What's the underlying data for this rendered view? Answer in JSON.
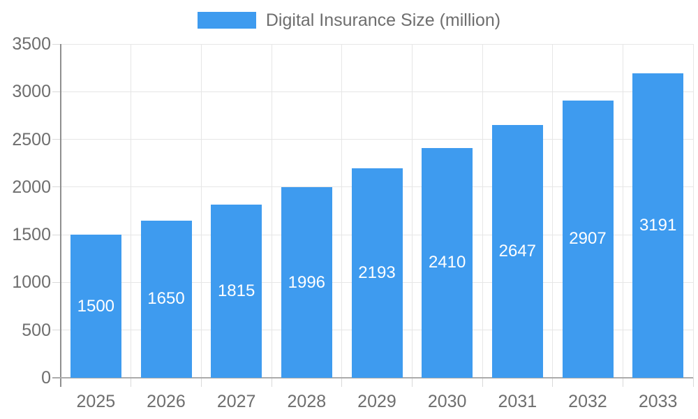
{
  "chart_data": {
    "type": "bar",
    "title": "Digital Insurance Size (million)",
    "categories": [
      "2025",
      "2026",
      "2027",
      "2028",
      "2029",
      "2030",
      "2031",
      "2032",
      "2033"
    ],
    "values": [
      1500,
      1650,
      1815,
      1996,
      2193,
      2410,
      2647,
      2907,
      3191
    ],
    "xlabel": "",
    "ylabel": "",
    "ylim": [
      0,
      3500
    ],
    "ytick_step": 500,
    "grid": true,
    "legend_position": "top-center",
    "value_labels": "inside-center",
    "bar_color": "#3E9BEF",
    "value_label_color": "#FFFFFF",
    "grid_color": "#E6E6E6",
    "tick_color": "#D9D9D9",
    "y_axis_color": "#8F8F8F",
    "x_axis_color": "#ABABAB",
    "text_color": "#6E6E6E",
    "background": "#FFFFFF"
  }
}
